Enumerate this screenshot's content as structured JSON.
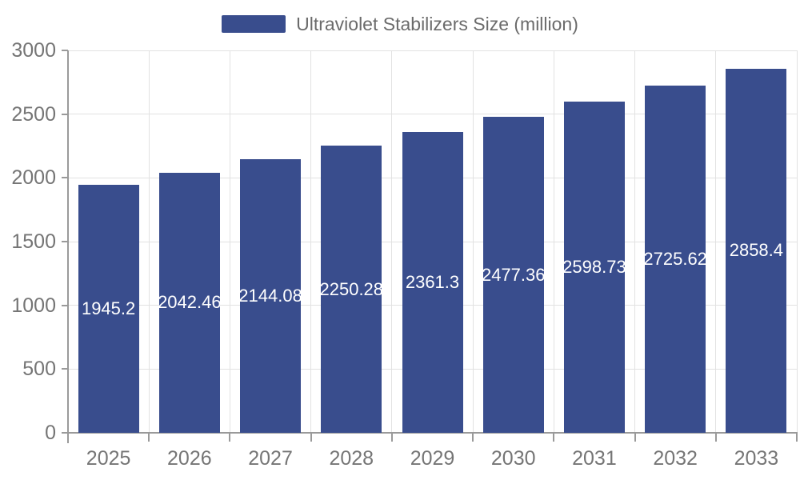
{
  "chart_data": {
    "type": "bar",
    "title": "",
    "legend": {
      "position": "top",
      "label": "Ultraviolet Stabilizers Size (million)"
    },
    "categories": [
      "2025",
      "2026",
      "2027",
      "2028",
      "2029",
      "2030",
      "2031",
      "2032",
      "2033"
    ],
    "series": [
      {
        "name": "Ultraviolet Stabilizers Size (million)",
        "values": [
          1945.2,
          2042.46,
          2144.08,
          2250.28,
          2361.3,
          2477.36,
          2598.73,
          2725.62,
          2858.4
        ],
        "labels": [
          "1945.2",
          "2042.46",
          "2144.08",
          "2250.28",
          "2361.3",
          "2477.36",
          "2598.73",
          "2725.62",
          "2858.4"
        ]
      }
    ],
    "xlabel": "",
    "ylabel": "",
    "ylim": [
      0,
      3000
    ],
    "yticks": [
      0,
      500,
      1000,
      1500,
      2000,
      2500,
      3000
    ],
    "grid": true,
    "value_labels": "inside-center"
  },
  "colors": {
    "bar": "#394d8d",
    "axis_line": "#9a9a9a",
    "gridline": "#e2e2e2",
    "tick_label": "#757575",
    "legend_text": "#6b6b6b",
    "bar_label": "#ffffff",
    "background": "#ffffff"
  }
}
